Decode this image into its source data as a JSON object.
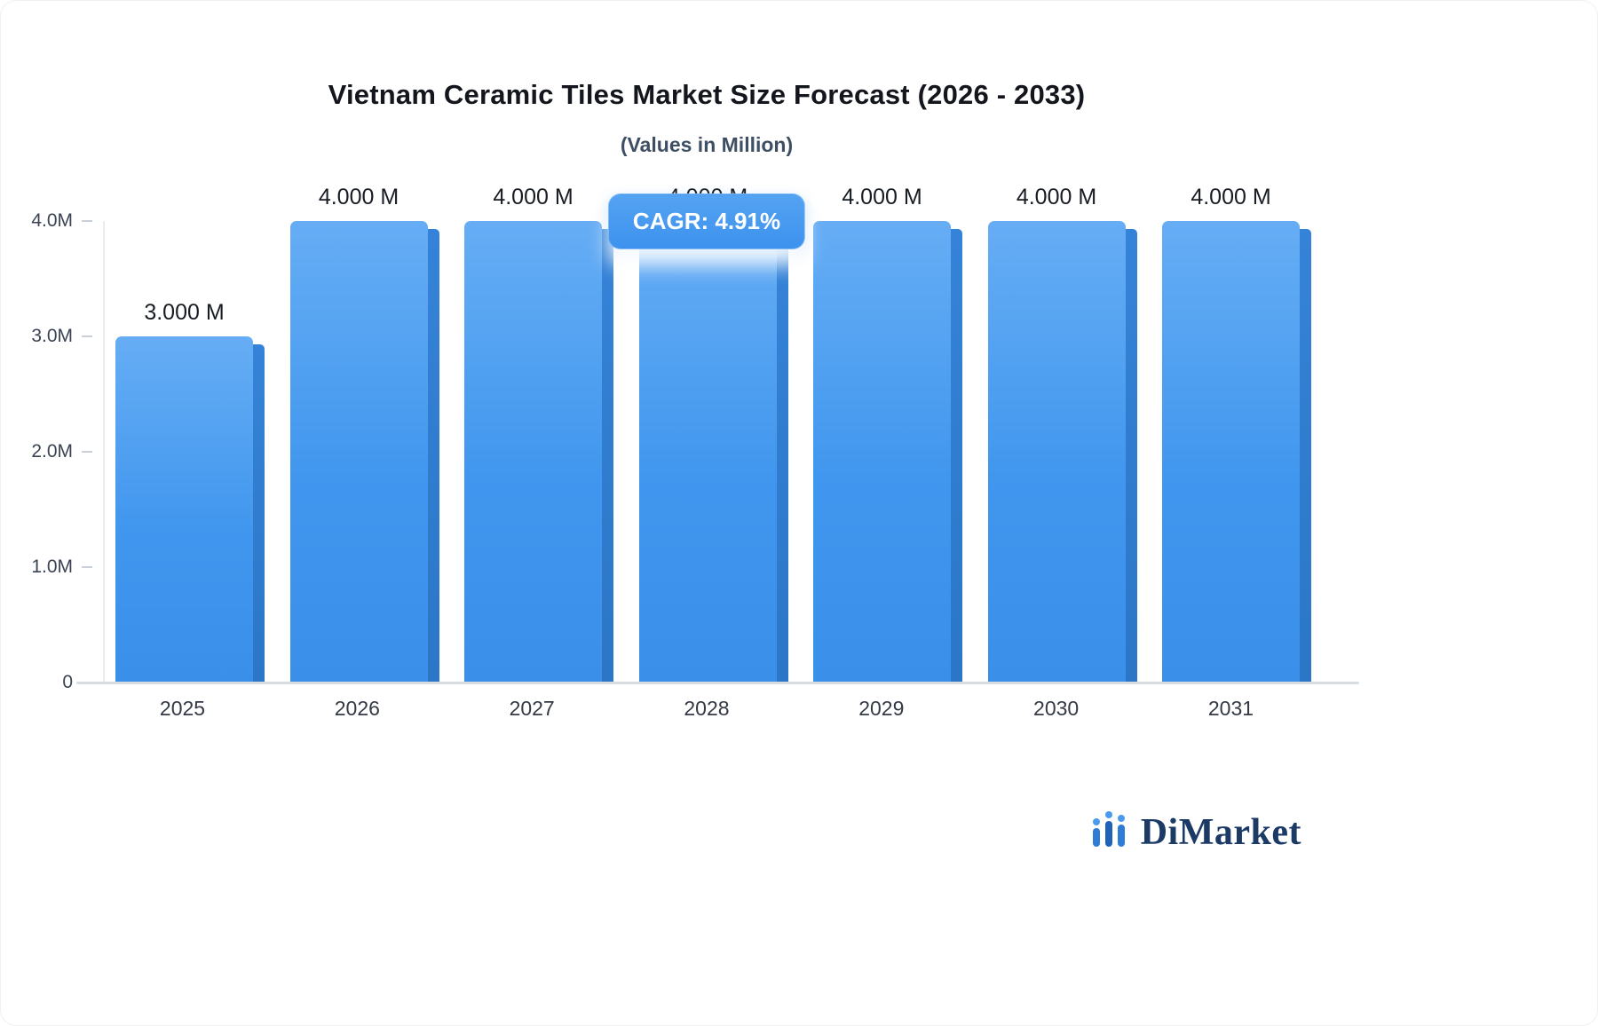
{
  "header": {
    "title": "Vietnam Ceramic Tiles Market Size Forecast (2026 - 2033)",
    "subtitle": "(Values in Million)"
  },
  "badge": {
    "label": "CAGR: 4.91%"
  },
  "chart_data": {
    "type": "bar",
    "title": "Vietnam Ceramic Tiles Market Size Forecast (2026 - 2033)",
    "subtitle": "(Values in Million)",
    "xlabel": "",
    "ylabel": "",
    "unit": "Million",
    "categories": [
      "2025",
      "2026",
      "2027",
      "2028",
      "2029",
      "2030",
      "2031"
    ],
    "values": [
      3.0,
      4.0,
      4.0,
      4.0,
      4.0,
      4.0,
      4.0
    ],
    "value_labels": [
      "3.000 M",
      "4.000 M",
      "4.000 M",
      "4.000 M",
      "4.000 M",
      "4.000 M",
      "4.000 M"
    ],
    "annotation": "CAGR: 4.91%",
    "ylim": [
      0,
      4
    ],
    "yticks": [
      {
        "value": 0,
        "label": "0"
      },
      {
        "value": 1,
        "label": "1.0M"
      },
      {
        "value": 2,
        "label": "2.0M"
      },
      {
        "value": 3,
        "label": "3.0M"
      },
      {
        "value": 4,
        "label": "4.0M"
      }
    ],
    "grid": false,
    "legend": "none",
    "bar_color": "#3e96ed",
    "bar_color_light": "#66adf5",
    "bar_side_color": "#2b76c6",
    "axis_color": "#d9dde2"
  },
  "branding": {
    "logo_text": "DiMarket",
    "icon": "bar-chart-logo-icon",
    "text_color": "#1c3a66",
    "icon_color": "#2e7cd6"
  }
}
